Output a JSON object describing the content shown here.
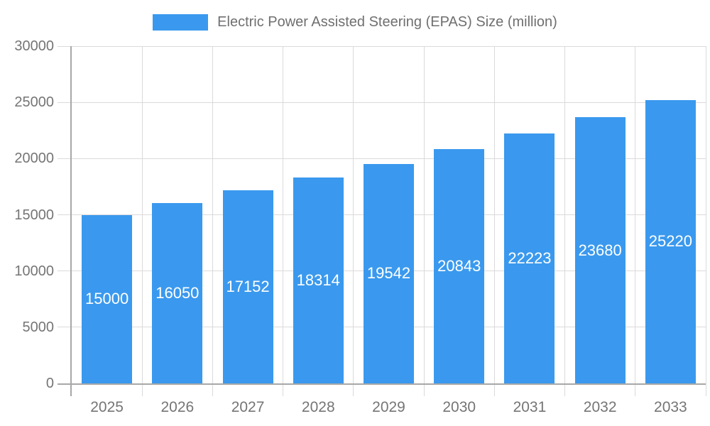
{
  "legend": {
    "label": "Electric Power Assisted Steering (EPAS) Size (million)"
  },
  "chart_data": {
    "type": "bar",
    "title": "Electric Power Assisted Steering (EPAS) Size (million)",
    "categories": [
      "2025",
      "2026",
      "2027",
      "2028",
      "2029",
      "2030",
      "2031",
      "2032",
      "2033"
    ],
    "series": [
      {
        "name": "Electric Power Assisted Steering (EPAS) Size (million)",
        "values": [
          15000,
          16050,
          17152,
          18314,
          19542,
          20843,
          22223,
          23680,
          25220
        ]
      }
    ],
    "values": [
      15000,
      16050,
      17152,
      18314,
      19542,
      20843,
      22223,
      23680,
      25220
    ],
    "value_labels": [
      "15000",
      "16050",
      "17152",
      "18314",
      "19542",
      "20843",
      "22223",
      "23680",
      "25220"
    ],
    "xlabel": "",
    "ylabel": "",
    "ylim": [
      0,
      30000
    ],
    "yticks": [
      0,
      5000,
      10000,
      15000,
      20000,
      25000,
      30000
    ],
    "grid": true,
    "legend_position": "top",
    "bar_label_style": "inside-center-white",
    "colors": {
      "bar": "#3A99EE",
      "axis": "#A8A8A8",
      "grid": "#DADADA",
      "tick_text": "#757575",
      "legend_text": "#6F6F6F",
      "value_text": "#FFFFFF",
      "background": "#FFFFFF"
    }
  }
}
